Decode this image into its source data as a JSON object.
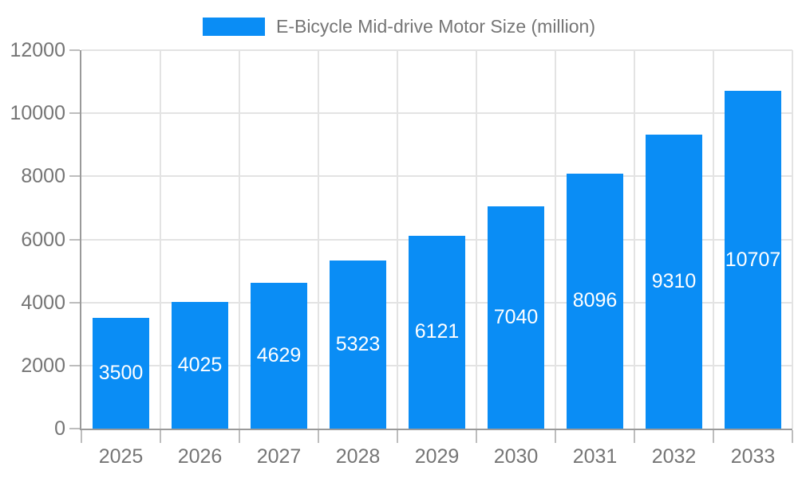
{
  "chart_data": {
    "type": "bar",
    "title": "E-Bicycle Mid-drive Motor Size (million)",
    "categories": [
      "2025",
      "2026",
      "2027",
      "2028",
      "2029",
      "2030",
      "2031",
      "2032",
      "2033"
    ],
    "values": [
      3500,
      4025,
      4629,
      5323,
      6121,
      7040,
      8096,
      9310,
      10707
    ],
    "xlabel": "",
    "ylabel": "",
    "ylim": [
      0,
      12000
    ],
    "yticks": [
      0,
      2000,
      4000,
      6000,
      8000,
      10000,
      12000
    ],
    "grid": true,
    "legend_position": "top-center",
    "bar_labels_inside": true,
    "colors": {
      "bar": "#0A8DF5",
      "bar_label": "#FFFFFF",
      "axis_text": "#757575",
      "legend_text": "#757575",
      "gridline": "#E3E3E3",
      "axis_line": "#9A9A9A",
      "tick": "#BDBDBD",
      "background": "#FFFFFF"
    }
  }
}
